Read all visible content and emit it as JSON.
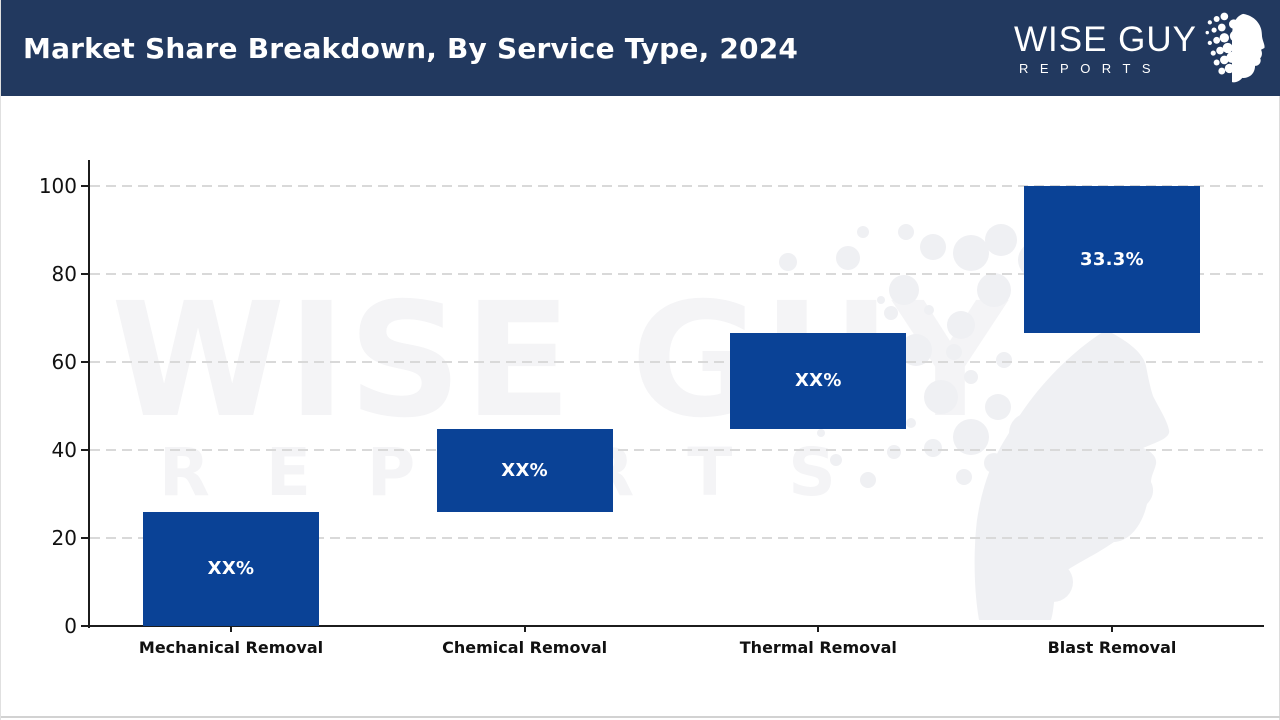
{
  "header": {
    "title": "Market Share Breakdown, By Service Type, 2024",
    "bg_color": "#22395f",
    "logo": {
      "line1": "WISE GUY",
      "line2": "REPORTS"
    }
  },
  "watermark": {
    "line1": "WISE GUY",
    "line2": "REPORTS"
  },
  "chart_data": {
    "type": "bar",
    "subtype": "waterfall-segments",
    "title": "Market Share Breakdown, By Service Type, 2024",
    "categories": [
      "Mechanical Removal",
      "Chemical Removal",
      "Thermal Removal",
      "Blast Removal"
    ],
    "segments": [
      {
        "start": 0,
        "end": 26
      },
      {
        "start": 26,
        "end": 44.8
      },
      {
        "start": 44.8,
        "end": 66.7
      },
      {
        "start": 66.7,
        "end": 100
      }
    ],
    "bar_labels": [
      "XX%",
      "XX%",
      "XX%",
      "33.3%"
    ],
    "yticks": [
      0,
      20,
      40,
      60,
      80,
      100
    ],
    "ylim": [
      0,
      105
    ],
    "xlabel": "",
    "ylabel": "",
    "grid": "horizontal-dashed",
    "legend": "none",
    "bar_color": "#0a4296",
    "label_color": "#ffffff"
  }
}
